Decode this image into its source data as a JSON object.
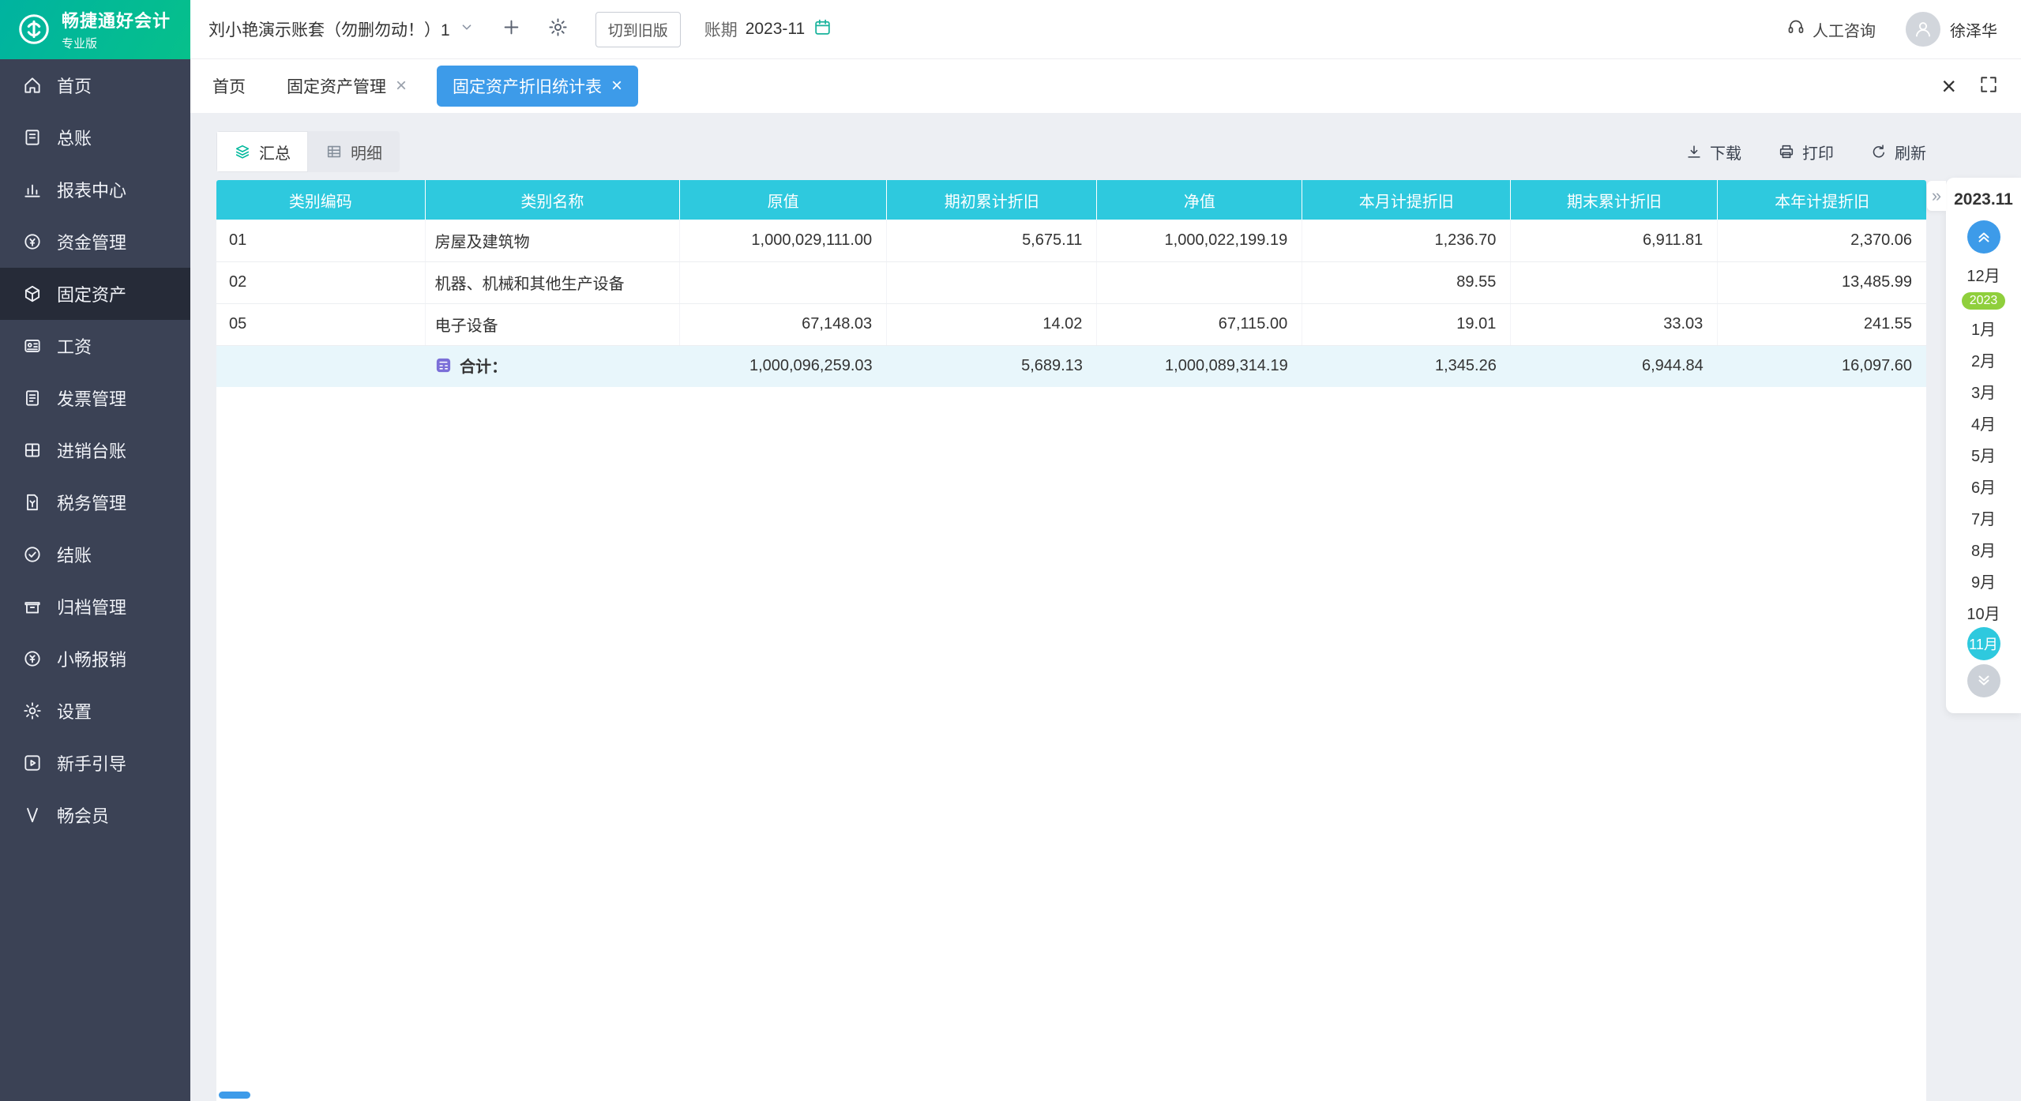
{
  "topbar": {
    "brand_name": "畅捷通好会计",
    "brand_edition": "专业版",
    "account_book": "刘小艳演示账套（勿删勿动！）1",
    "switch_old_version": "切到旧版",
    "period_label": "账期",
    "period_value": "2023-11",
    "support": "人工咨询",
    "user_name": "徐泽华"
  },
  "sidebar": {
    "items": [
      {
        "key": "home",
        "label": "首页",
        "icon": "home-icon",
        "active": false
      },
      {
        "key": "general-ledger",
        "label": "总账",
        "icon": "ledger-icon",
        "active": false
      },
      {
        "key": "report-center",
        "label": "报表中心",
        "icon": "report-icon",
        "active": false
      },
      {
        "key": "funds",
        "label": "资金管理",
        "icon": "funds-icon",
        "active": false
      },
      {
        "key": "fixed-assets",
        "label": "固定资产",
        "icon": "asset-icon",
        "active": true
      },
      {
        "key": "salary",
        "label": "工资",
        "icon": "salary-icon",
        "active": false
      },
      {
        "key": "invoice",
        "label": "发票管理",
        "icon": "invoice-icon",
        "active": false
      },
      {
        "key": "purchase-sale",
        "label": "进销台账",
        "icon": "purchase-sale-icon",
        "active": false
      },
      {
        "key": "tax",
        "label": "税务管理",
        "icon": "tax-icon",
        "active": false
      },
      {
        "key": "closing",
        "label": "结账",
        "icon": "closing-icon",
        "active": false
      },
      {
        "key": "archive",
        "label": "归档管理",
        "icon": "archive-icon",
        "active": false
      },
      {
        "key": "reimburse",
        "label": "小畅报销",
        "icon": "reimburse-icon",
        "active": false
      },
      {
        "key": "settings",
        "label": "设置",
        "icon": "settings-icon",
        "active": false
      },
      {
        "key": "guide",
        "label": "新手引导",
        "icon": "guide-icon",
        "active": false
      },
      {
        "key": "member",
        "label": "畅会员",
        "icon": "member-icon",
        "active": false
      }
    ]
  },
  "tabs": {
    "items": [
      {
        "key": "home",
        "label": "首页",
        "closable": false,
        "active": false
      },
      {
        "key": "fixed-asset-management",
        "label": "固定资产管理",
        "closable": true,
        "active": false
      },
      {
        "key": "depreciation-report",
        "label": "固定资产折旧统计表",
        "closable": true,
        "active": true
      }
    ]
  },
  "toolbar": {
    "summary": "汇总",
    "detail": "明细",
    "download": "下载",
    "print": "打印",
    "refresh": "刷新"
  },
  "table": {
    "columns": [
      "类别编码",
      "类别名称",
      "原值",
      "期初累计折旧",
      "净值",
      "本月计提折旧",
      "期末累计折旧",
      "本年计提折旧"
    ],
    "rows": [
      {
        "code": "01",
        "name": "房屋及建筑物",
        "values": [
          "1,000,029,111.00",
          "5,675.11",
          "1,000,022,199.19",
          "1,236.70",
          "6,911.81",
          "2,370.06"
        ]
      },
      {
        "code": "02",
        "name": "机器、机械和其他生产设备",
        "values": [
          "",
          "",
          "",
          "89.55",
          "",
          "13,485.99"
        ]
      },
      {
        "code": "05",
        "name": "电子设备",
        "values": [
          "67,148.03",
          "14.02",
          "67,115.00",
          "19.01",
          "33.03",
          "241.55"
        ]
      }
    ],
    "total": {
      "label": "合计：",
      "values": [
        "1,000,096,259.03",
        "5,689.13",
        "1,000,089,314.19",
        "1,345.26",
        "6,944.84",
        "16,097.60"
      ]
    }
  },
  "period_panel": {
    "current": "2023.11",
    "items": [
      {
        "type": "month",
        "key": "m12",
        "label": "12月",
        "selected": false
      },
      {
        "type": "year-badge",
        "key": "y2023",
        "label": "2023"
      },
      {
        "type": "month",
        "key": "m1",
        "label": "1月",
        "selected": false
      },
      {
        "type": "month",
        "key": "m2",
        "label": "2月",
        "selected": false
      },
      {
        "type": "month",
        "key": "m3",
        "label": "3月",
        "selected": false
      },
      {
        "type": "month",
        "key": "m4",
        "label": "4月",
        "selected": false
      },
      {
        "type": "month",
        "key": "m5",
        "label": "5月",
        "selected": false
      },
      {
        "type": "month",
        "key": "m6",
        "label": "6月",
        "selected": false
      },
      {
        "type": "month",
        "key": "m7",
        "label": "7月",
        "selected": false
      },
      {
        "type": "month",
        "key": "m8",
        "label": "8月",
        "selected": false
      },
      {
        "type": "month",
        "key": "m9",
        "label": "9月",
        "selected": false
      },
      {
        "type": "month",
        "key": "m10",
        "label": "10月",
        "selected": false
      },
      {
        "type": "month",
        "key": "m11",
        "label": "11月",
        "selected": true
      }
    ]
  },
  "colors": {
    "brand_teal": "#00b3a0",
    "brand_green": "#06c08b",
    "sidebar_bg": "#3b4255",
    "sidebar_active_bg": "#262b38",
    "active_tab_blue": "#3d9be9",
    "table_header_cyan": "#2ec9de",
    "total_row_bg": "#e8f6fb",
    "selected_month_cyan": "#2ec9de",
    "year_badge_green": "#8fcf3c",
    "content_bg": "#edeff3"
  }
}
